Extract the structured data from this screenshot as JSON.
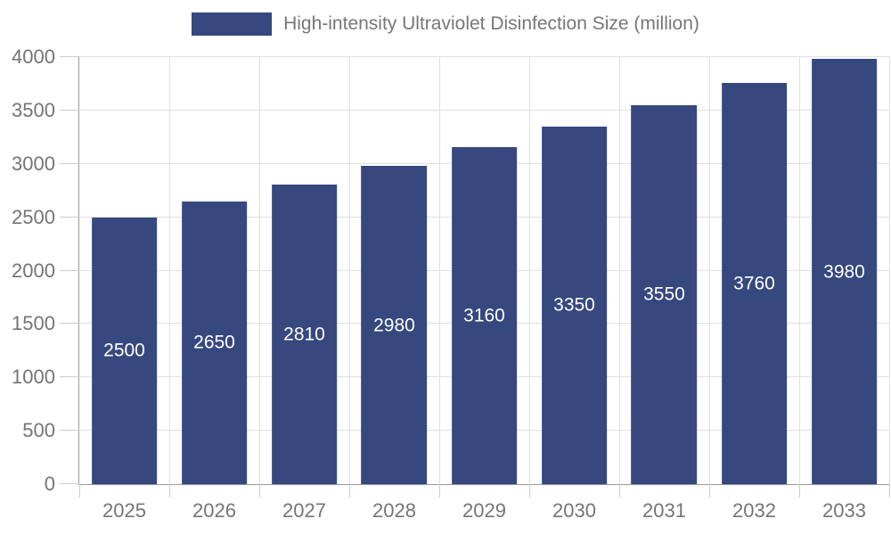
{
  "legend": {
    "label": "High-intensity Ultraviolet Disinfection Size (million)"
  },
  "colors": {
    "bar": "#36487e",
    "grid": "#e0e0e0",
    "axis_line": "#9a9a9a",
    "tick": "#cccccc",
    "axis_label_text": "#757575",
    "bar_label_text": "#ffffff",
    "legend_text": "#777777",
    "background": "#ffffff"
  },
  "chart_data": {
    "type": "bar",
    "title": "",
    "legend_entries": [
      "High-intensity Ultraviolet Disinfection Size (million)"
    ],
    "legend_position": "top-center",
    "categories": [
      "2025",
      "2026",
      "2027",
      "2028",
      "2029",
      "2030",
      "2031",
      "2032",
      "2033"
    ],
    "values": [
      2500,
      2650,
      2810,
      2980,
      3160,
      3350,
      3550,
      3760,
      3980
    ],
    "xlabel": "",
    "ylabel": "",
    "ylim": [
      0,
      4000
    ],
    "yticks": [
      0,
      500,
      1000,
      1500,
      2000,
      2500,
      3000,
      3500,
      4000
    ],
    "grid": true,
    "bar_label_position": "inside-middle"
  }
}
